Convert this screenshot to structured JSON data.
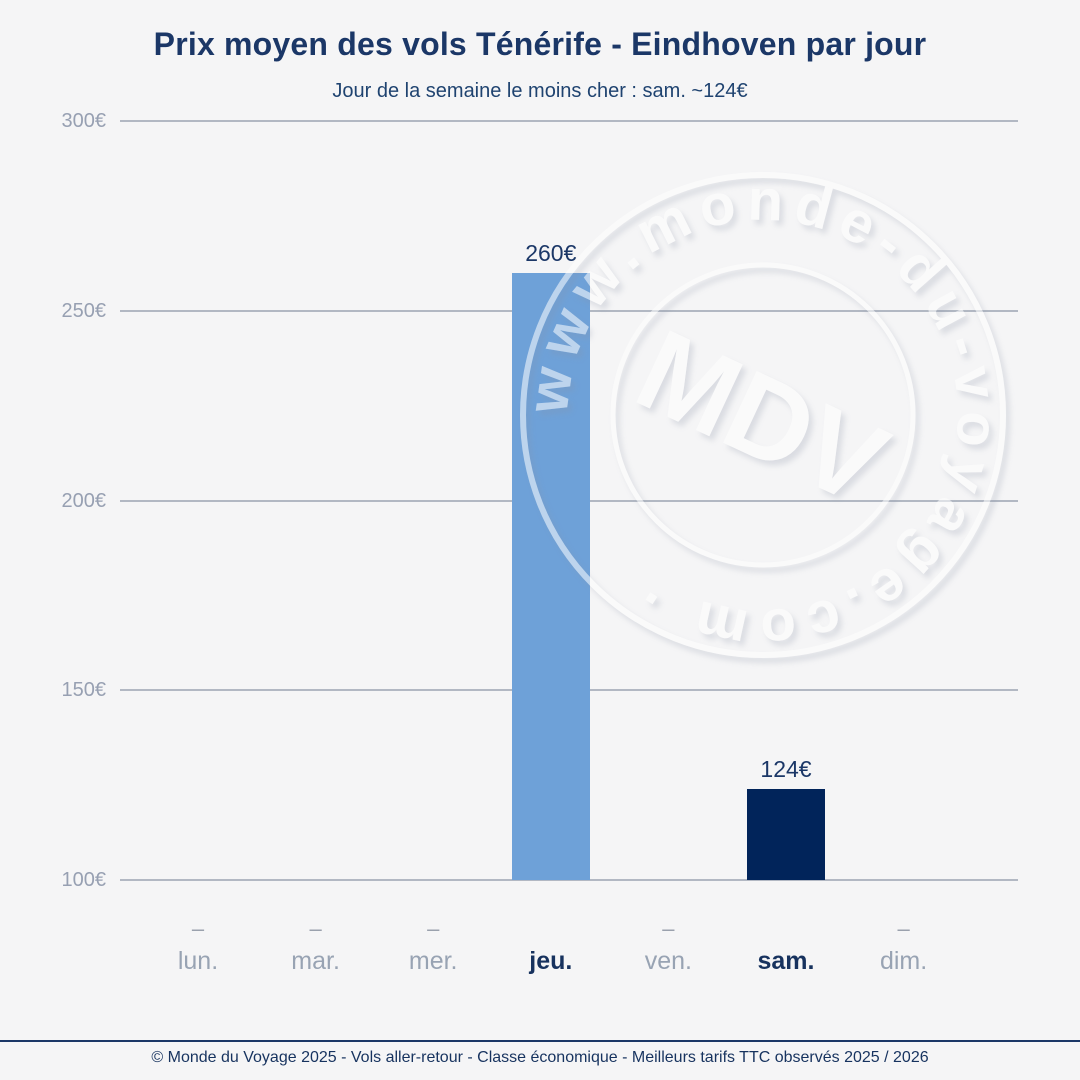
{
  "header": {
    "title": "Prix moyen des vols Ténérife - Eindhoven par jour",
    "subtitle": "Jour de la semaine le moins cher : sam. ~124€"
  },
  "chart_data": {
    "type": "bar",
    "title": "Prix moyen des vols Ténérife - Eindhoven par jour",
    "subtitle": "Jour de la semaine le moins cher : sam. ~124€",
    "categories": [
      "lun.",
      "mar.",
      "mer.",
      "jeu.",
      "ven.",
      "sam.",
      "dim."
    ],
    "values": [
      null,
      null,
      null,
      260,
      null,
      124,
      null
    ],
    "value_labels": [
      null,
      null,
      null,
      "260€",
      null,
      "124€",
      null
    ],
    "no_data_marker": "–",
    "currency": "€",
    "ylim": [
      100,
      300
    ],
    "yticks": [
      {
        "value": 300,
        "label": "300€"
      },
      {
        "value": 250,
        "label": "250€"
      },
      {
        "value": 200,
        "label": "200€"
      },
      {
        "value": 150,
        "label": "150€"
      },
      {
        "value": 100,
        "label": "100€"
      }
    ],
    "grid": true,
    "legend": null,
    "bar_colors": {
      "default": "#6ea1d8",
      "highlight": "#01245a"
    },
    "highlight_index": 5,
    "cheapest_day": "sam.",
    "cheapest_price": "124€"
  },
  "watermark": {
    "ring_text": "www.monde-du-voyage.com · ",
    "monogram": "MDV"
  },
  "footer": {
    "text": "© Monde du Voyage 2025 - Vols aller-retour - Classe économique - Meilleurs tarifs TTC observés 2025 / 2026"
  },
  "colors": {
    "background": "#f5f5f6",
    "title_navy": "#1b3767",
    "subtitle_navy": "#1f4370",
    "bar_light_blue": "#6ea1d8",
    "bar_dark_navy": "#01245a",
    "gridline_gray": "#b2b8c3",
    "axis_label_gray": "#97a0b2",
    "day_label_gray": "#98a3b3",
    "day_label_navy": "#17325e",
    "footer_navy": "#17335f"
  }
}
